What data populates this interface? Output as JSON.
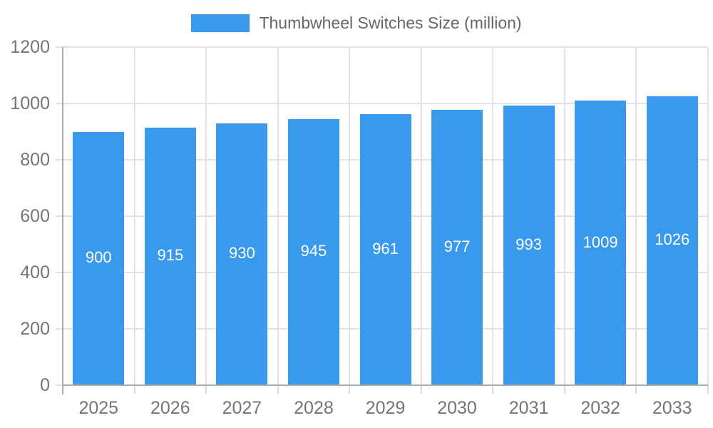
{
  "legend": {
    "items": [
      {
        "label": "Thumbwheel Switches Size (million)",
        "color": "#3999EC"
      }
    ]
  },
  "chart_data": {
    "type": "bar",
    "title": "",
    "categories": [
      "2025",
      "2026",
      "2027",
      "2028",
      "2029",
      "2030",
      "2031",
      "2032",
      "2033"
    ],
    "series": [
      {
        "name": "Thumbwheel Switches Size (million)",
        "values": [
          900,
          915,
          930,
          945,
          961,
          977,
          993,
          1009,
          1026
        ],
        "color": "#3999EC"
      }
    ],
    "xlabel": "",
    "ylabel": "",
    "ylim": [
      0,
      1200
    ],
    "yticks": [
      0,
      200,
      400,
      600,
      800,
      1000,
      1200
    ],
    "grid": true,
    "legend_position": "top",
    "value_labels": {
      "visible": true,
      "color": "#FFFFFF",
      "position": "center"
    }
  },
  "axis": {
    "label_color": "#757575",
    "grid_color": "#E2E2E2",
    "tick_color": "#DBDBDB",
    "line_color": "#ABABAB"
  }
}
